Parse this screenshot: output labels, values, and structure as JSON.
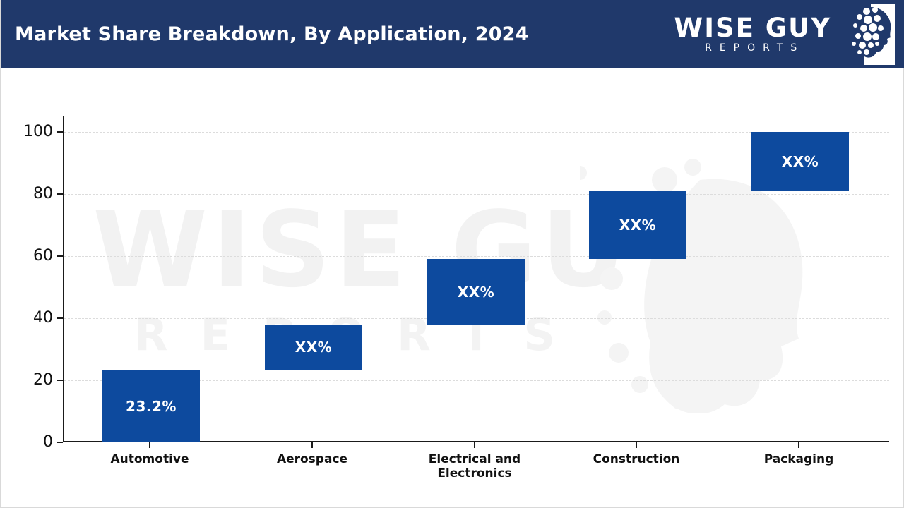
{
  "header": {
    "title": "Market Share Breakdown, By Application, 2024",
    "logo": {
      "line1": "WISE GUY",
      "line2": "REPORTS"
    }
  },
  "watermark": {
    "line1": "WISE GUY",
    "line2": "REPORTS"
  },
  "colors": {
    "header_bg": "#20396b",
    "bar": "#0d4a9e",
    "bar_label": "#ffffff",
    "gridline": "#dcdcdc",
    "axis": "#1a1a1a"
  },
  "chart_data": {
    "type": "bar",
    "subtype": "waterfall",
    "title": "Market Share Breakdown, By Application, 2024",
    "categories": [
      "Automotive",
      "Aerospace",
      "Electrical and\nElectronics",
      "Construction",
      "Packaging"
    ],
    "segments": [
      {
        "category": "Automotive",
        "start": 0,
        "end": 23.2,
        "bar_label": "23.2%"
      },
      {
        "category": "Aerospace",
        "start": 23.2,
        "end": 38,
        "bar_label": "XX%"
      },
      {
        "category": "Electrical and Electronics",
        "start": 38,
        "end": 59,
        "bar_label": "XX%"
      },
      {
        "category": "Construction",
        "start": 59,
        "end": 81,
        "bar_label": "XX%"
      },
      {
        "category": "Packaging",
        "start": 81,
        "end": 100,
        "bar_label": "XX%"
      }
    ],
    "yticks": [
      0,
      20,
      40,
      60,
      80,
      100
    ],
    "ylim": [
      0,
      105
    ],
    "xlabel": "",
    "ylabel": "",
    "grid": "horizontal-dashed",
    "legend": "none"
  }
}
